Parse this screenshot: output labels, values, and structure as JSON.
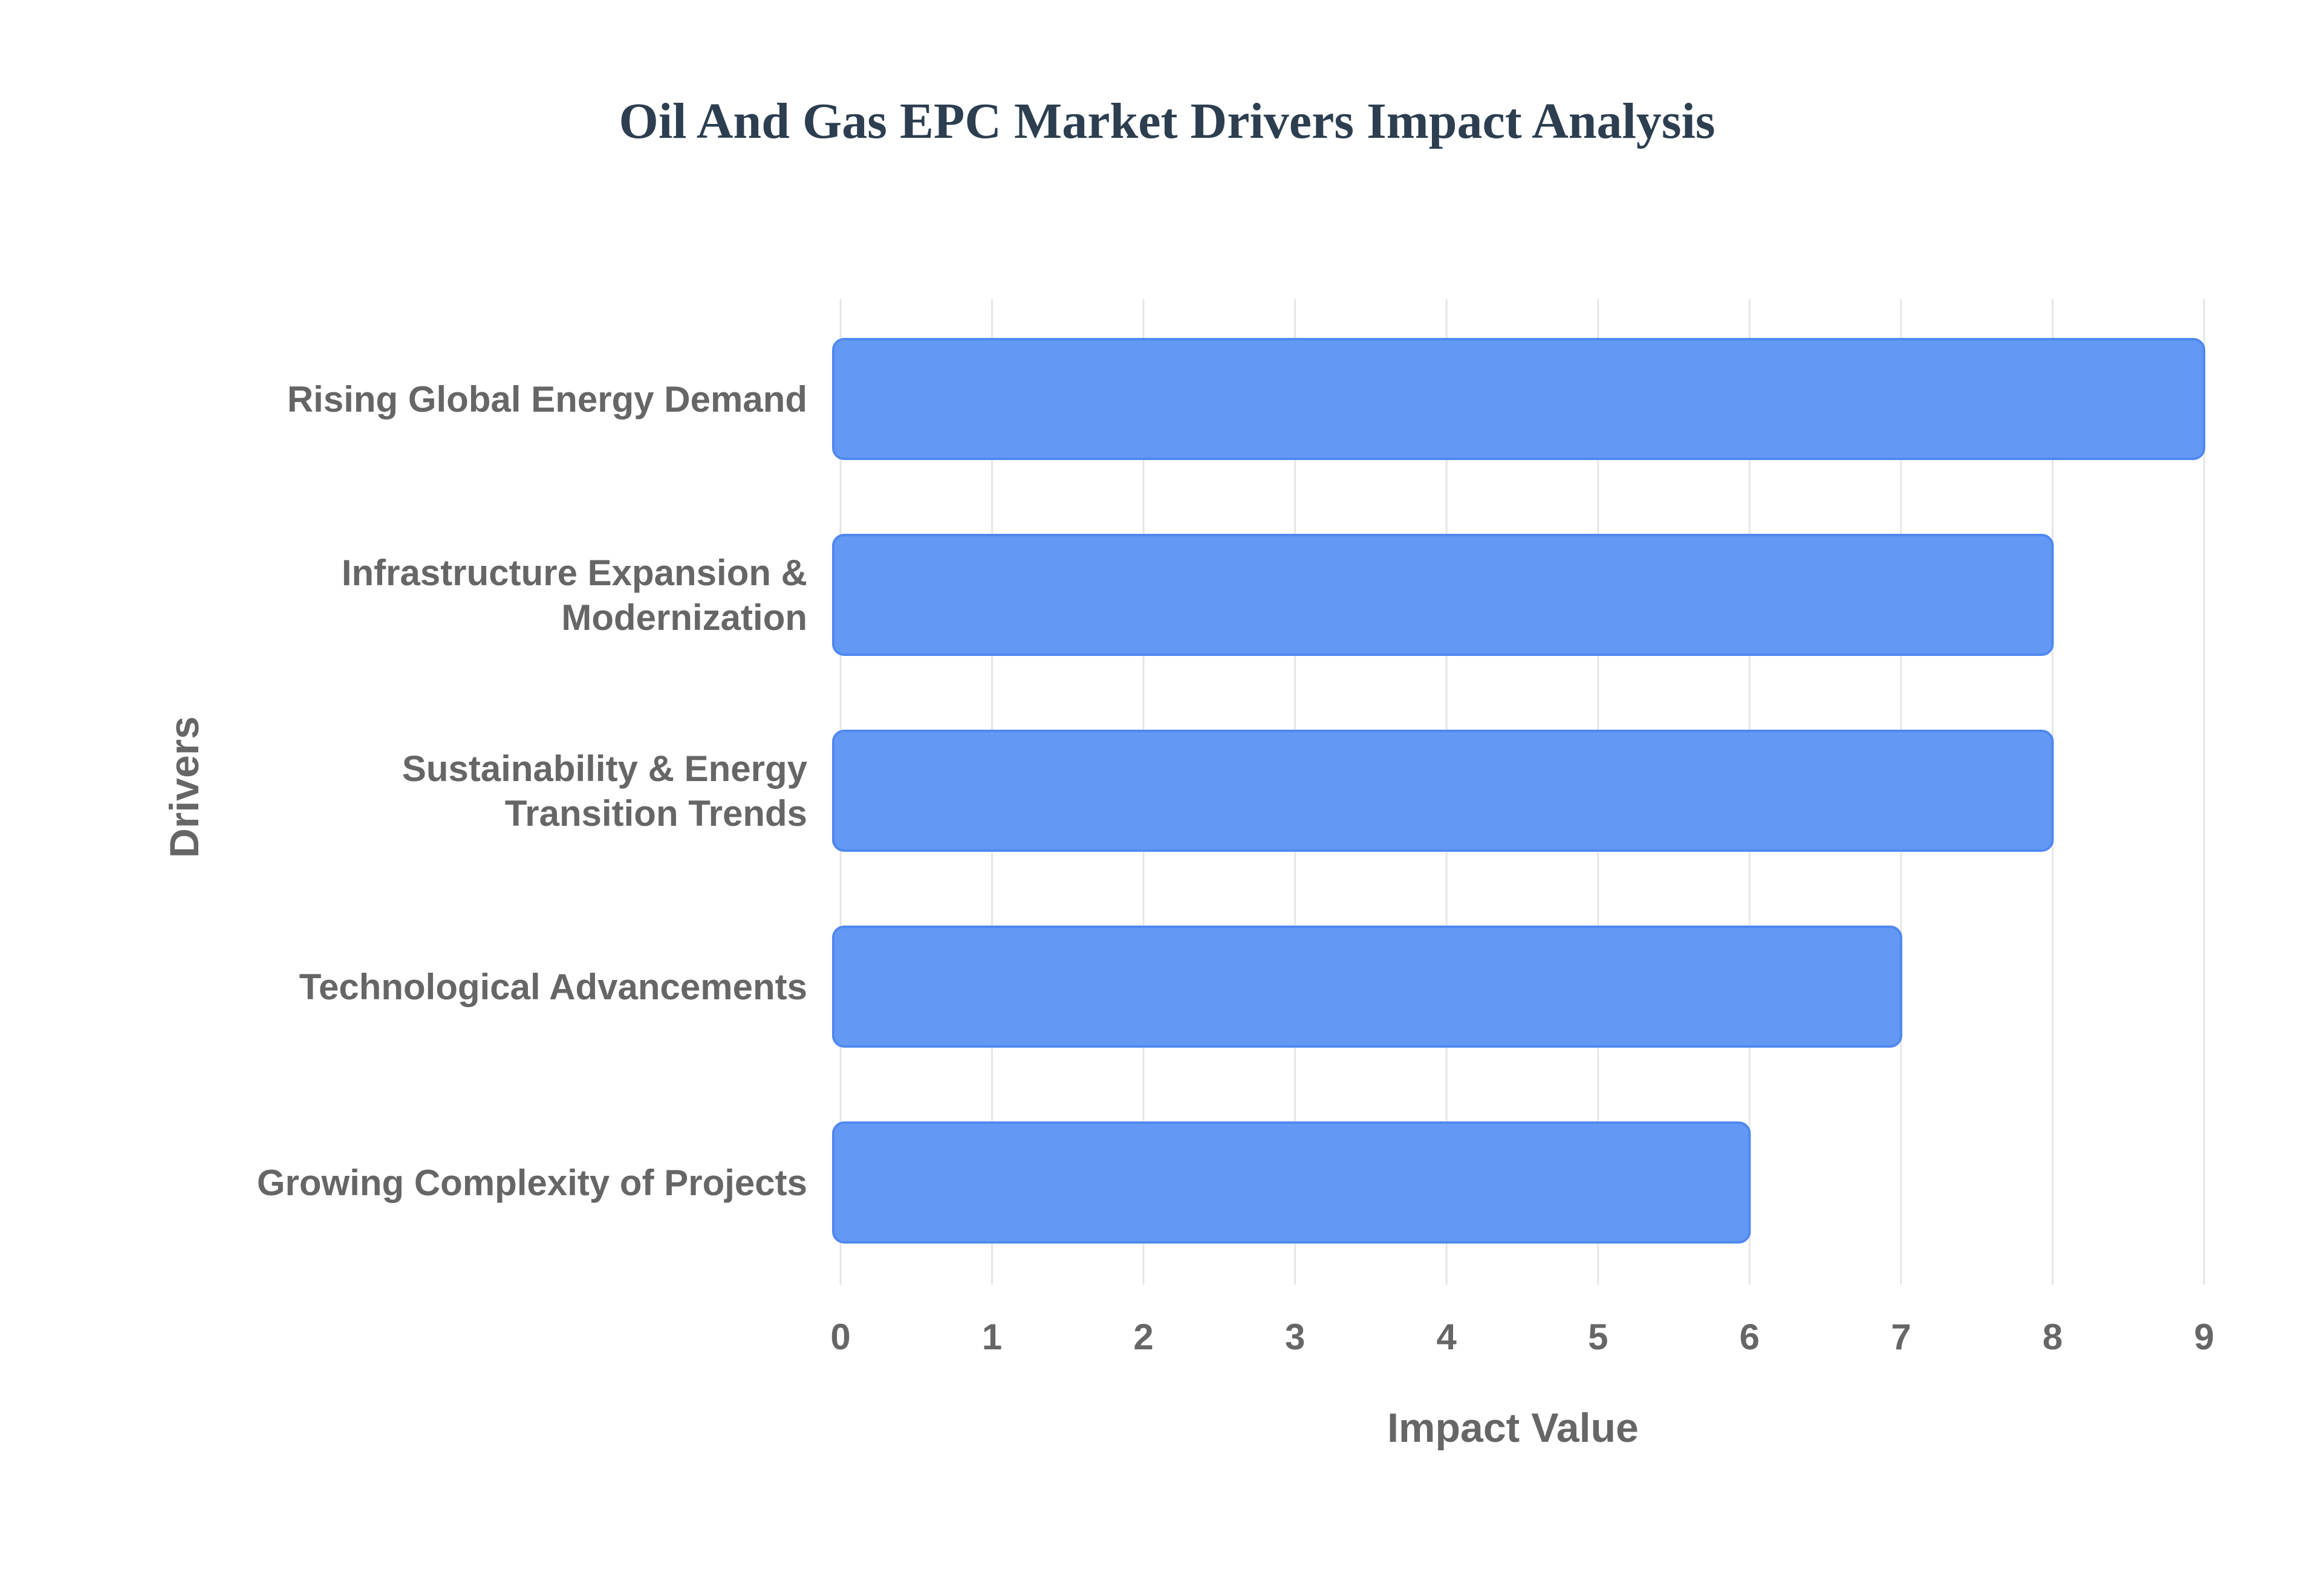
{
  "chart_data": {
    "type": "bar",
    "orientation": "horizontal",
    "title": "Oil And Gas EPC Market Drivers Impact Analysis",
    "xlabel": "Impact Value",
    "ylabel": "Drivers",
    "categories": [
      "Rising Global Energy Demand",
      "Infrastructure Expansion & Modernization",
      "Sustainability & Energy Transition Trends",
      "Technological Advancements",
      "Growing Complexity of Projects"
    ],
    "category_lines": [
      [
        "Rising Global Energy Demand"
      ],
      [
        "Infrastructure Expansion &",
        "Modernization"
      ],
      [
        "Sustainability & Energy",
        "Transition Trends"
      ],
      [
        "Technological Advancements"
      ],
      [
        "Growing Complexity of Projects"
      ]
    ],
    "values": [
      9,
      8,
      8,
      7,
      6
    ],
    "xlim": [
      0,
      9
    ],
    "xticks": [
      "0",
      "1",
      "2",
      "3",
      "4",
      "5",
      "6",
      "7",
      "8",
      "9"
    ],
    "grid": true,
    "legend": false
  },
  "colors": {
    "bar_fill": "#6399f5",
    "bar_stroke": "#4f88f0",
    "title": "#2c3e50",
    "labels": "#666666",
    "grid": "#e6e6e6"
  }
}
